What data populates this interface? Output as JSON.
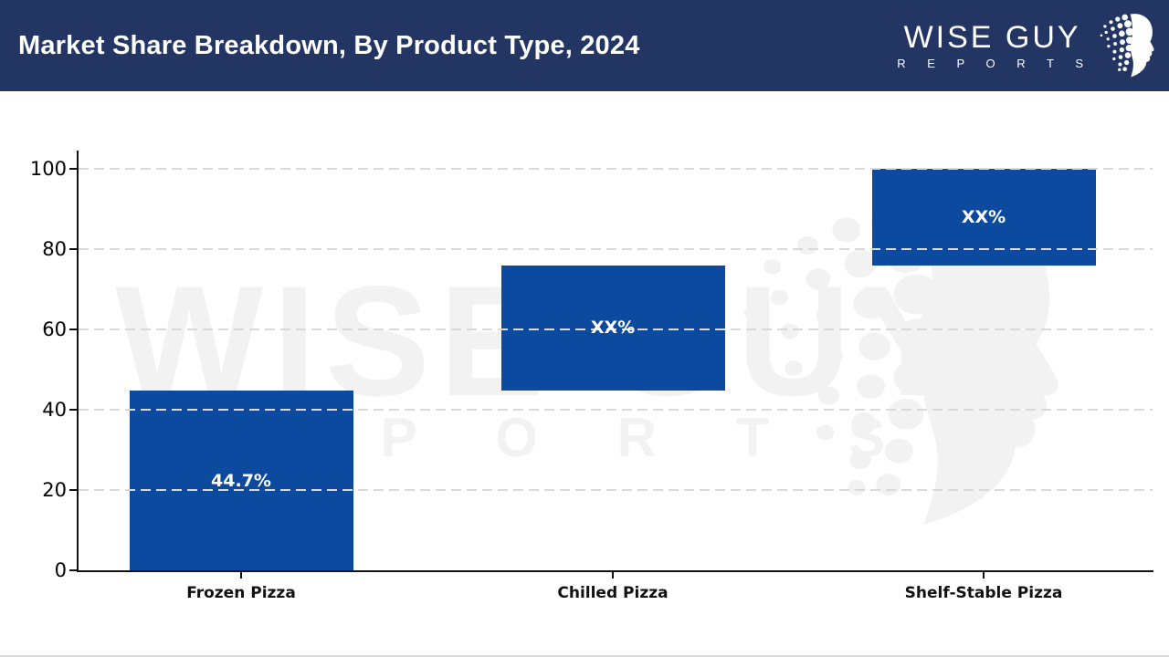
{
  "header": {
    "title": "Market Share Breakdown, By Product Type, 2024",
    "logo": {
      "line1": "WISE GUY",
      "line2": "R E P O R T S"
    }
  },
  "watermark": {
    "line1": "WISE GUY",
    "line2": "R E P O R T S"
  },
  "chart_data": {
    "type": "bar",
    "subtype": "waterfall",
    "title": "Market Share Breakdown, By Product Type, 2024",
    "categories": [
      "Frozen Pizza",
      "Chilled Pizza",
      "Shelf-Stable Pizza"
    ],
    "segments": [
      {
        "category": "Frozen Pizza",
        "start": 0,
        "end": 44.7,
        "label": "44.7%"
      },
      {
        "category": "Chilled Pizza",
        "start": 44.7,
        "end": 76,
        "label": "XX%"
      },
      {
        "category": "Shelf-Stable Pizza",
        "start": 76,
        "end": 100,
        "label": "XX%"
      }
    ],
    "xlabel": "",
    "ylabel": "",
    "ylim": [
      0,
      100
    ],
    "yticks": [
      0,
      20,
      40,
      60,
      80,
      100
    ],
    "grid": "horizontal-dashed",
    "legend": "none",
    "bar_color": "#0C4AA0",
    "label_color": "#ffffff"
  },
  "colors": {
    "header_bg": "#233563",
    "bar": "#0C4AA0",
    "grid": "#d9d9d9",
    "axis": "#111111",
    "watermark": "#f2f2f2"
  }
}
